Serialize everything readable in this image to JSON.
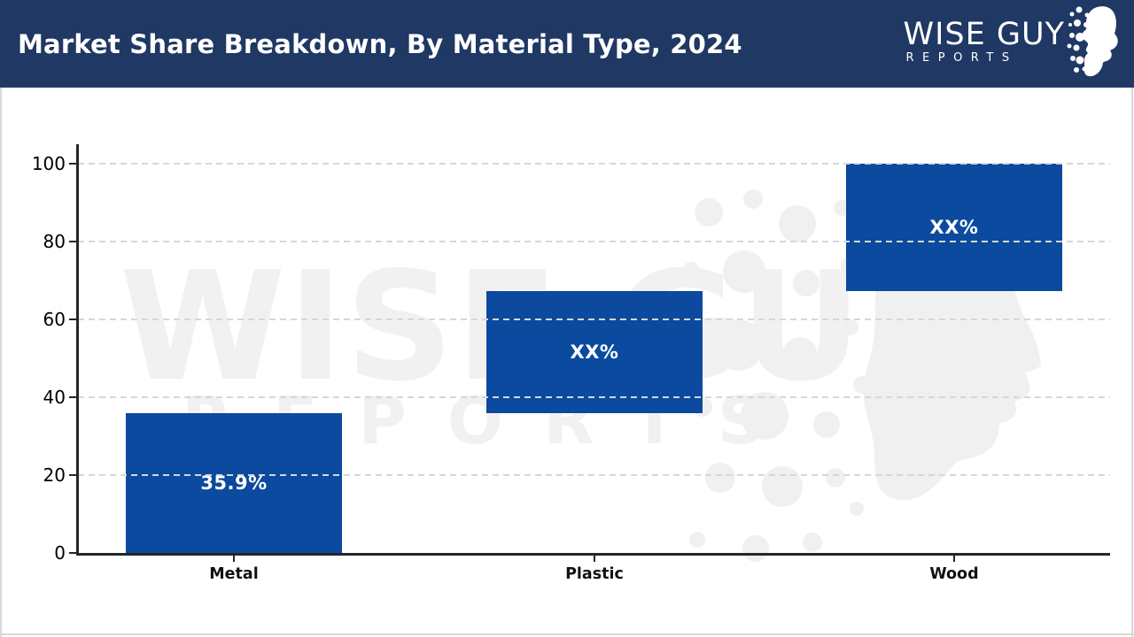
{
  "header": {
    "title": "Market Share Breakdown, By Material Type, 2024",
    "logo": {
      "line1": "WISE GUY",
      "line2": "REPORTS"
    }
  },
  "watermark": {
    "line1": "WISE GUY",
    "line2": "REPORTS"
  },
  "colors": {
    "header_bg": "#1f3864",
    "bar": "#0b4a9e",
    "grid": "#d7d7d7",
    "axis": "#262626",
    "bar_label": "#ffffff",
    "watermark": "#f1f1f1"
  },
  "chart_data": {
    "type": "bar",
    "subtype": "floating-waterfall-segments",
    "title": "Market Share Breakdown, By Material Type, 2024",
    "categories": [
      "Metal",
      "Plastic",
      "Wood"
    ],
    "segments": [
      {
        "category": "Metal",
        "start": 0,
        "end": 35.9,
        "label": "35.9%"
      },
      {
        "category": "Plastic",
        "start": 35.9,
        "end": 67.3,
        "label": "XX%"
      },
      {
        "category": "Wood",
        "start": 67.3,
        "end": 100,
        "label": "XX%"
      }
    ],
    "xlabel": "",
    "ylabel": "",
    "ylim": [
      0,
      100
    ],
    "yticks": [
      0,
      20,
      40,
      60,
      80,
      100
    ],
    "grid": "horizontal-dashed",
    "legend": "none",
    "bar_color": "#0b4a9e"
  }
}
